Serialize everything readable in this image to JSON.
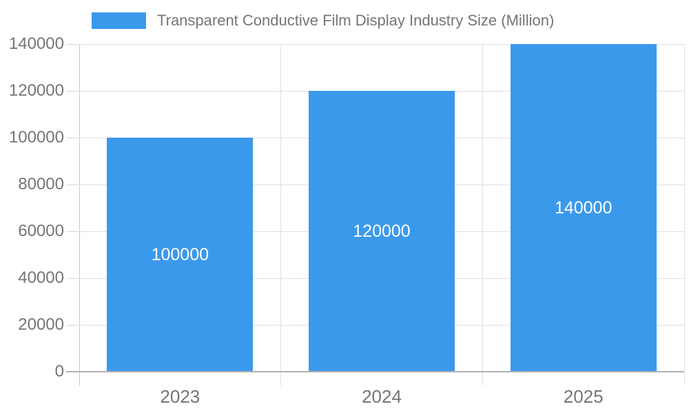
{
  "chart_data": {
    "type": "bar",
    "title": "Transparent Conductive Film Display Industry Size (Million)",
    "categories": [
      "2023",
      "2024",
      "2025"
    ],
    "series": [
      {
        "name": "Transparent Conductive Film Display Industry Size (Million)",
        "values": [
          100000,
          120000,
          140000
        ]
      }
    ],
    "bar_value_labels": [
      "100000",
      "120000",
      "140000"
    ],
    "xlabel": "",
    "ylabel": "",
    "ylim": [
      0,
      140000
    ],
    "yticks": [
      0,
      20000,
      40000,
      60000,
      80000,
      100000,
      120000,
      140000
    ],
    "ytick_labels": [
      "0",
      "20000",
      "40000",
      "60000",
      "80000",
      "100000",
      "120000",
      "140000"
    ],
    "grid": true,
    "legend_position": "top-left",
    "colors": {
      "bar": "#3b99ec",
      "bar_label": "#ffffff",
      "grid": "#e0e0e0",
      "x_axis_line": "#b0b0b0",
      "y_axis_line": "#c4c4c4",
      "tick": "#d6d6d6",
      "text": "#757575",
      "background": "#ffffff"
    }
  }
}
